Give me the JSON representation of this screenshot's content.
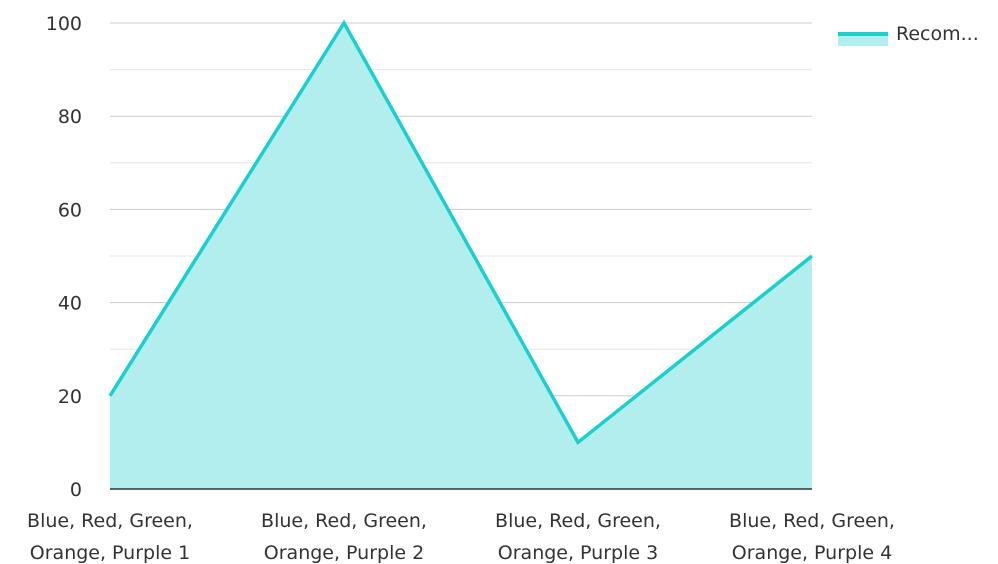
{
  "chart_data": {
    "type": "area",
    "categories": [
      [
        "Blue, Red, Green,",
        "Orange, Purple 1"
      ],
      [
        "Blue, Red, Green,",
        "Orange, Purple 2"
      ],
      [
        "Blue, Red, Green,",
        "Orange, Purple 3"
      ],
      [
        "Blue, Red, Green,",
        "Orange, Purple 4"
      ]
    ],
    "series": [
      {
        "name": "Recom...",
        "values": [
          20,
          100,
          10,
          50
        ]
      }
    ],
    "ylim": [
      0,
      100
    ],
    "yticks": [
      "0",
      "20",
      "40",
      "60",
      "80",
      "100"
    ],
    "grid": true,
    "legend_position": "top-right",
    "colors": {
      "line": "#1ccfcf",
      "fill": "#b2eeee",
      "grid_major": "#cccccc",
      "grid_minor": "#e6e6e6",
      "axis": "#333333"
    }
  }
}
